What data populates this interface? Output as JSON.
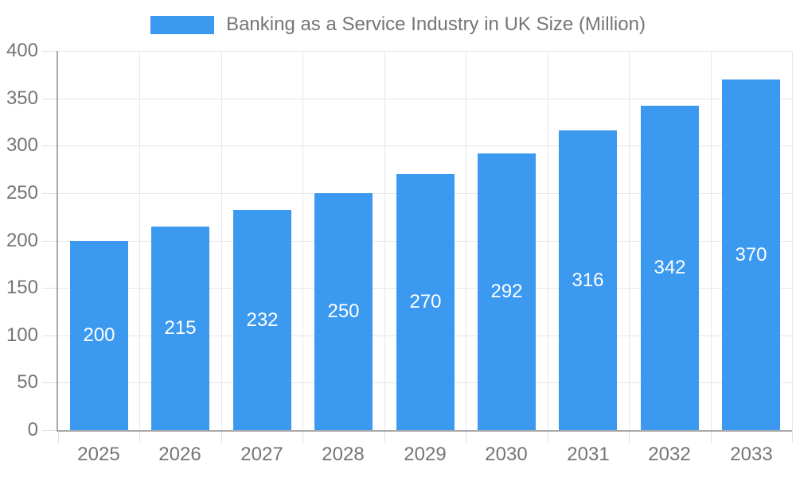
{
  "legend": {
    "label": "Banking as a Service Industry in UK Size (Million)"
  },
  "chart_data": {
    "type": "bar",
    "title": "Banking as a Service Industry in UK Size (Million)",
    "categories": [
      "2025",
      "2026",
      "2027",
      "2028",
      "2029",
      "2030",
      "2031",
      "2032",
      "2033"
    ],
    "series": [
      {
        "name": "Banking as a Service Industry in UK Size (Million)",
        "values": [
          200,
          215,
          232,
          250,
          270,
          292,
          316,
          342,
          370
        ]
      }
    ],
    "xlabel": "",
    "ylabel": "",
    "ylim": [
      0,
      400
    ],
    "ytick_step": 50,
    "grid": true,
    "bar_labels": "inside-center",
    "legend_position": "top"
  },
  "colors": {
    "bar": "#3B99F0",
    "axis_line": "#a8a8a8",
    "gridline": "#e6e6e6",
    "tick": "#e0e0e0",
    "axis_label": "#757575",
    "title": "#757575",
    "value_label": "#ffffff",
    "background": "#ffffff"
  }
}
